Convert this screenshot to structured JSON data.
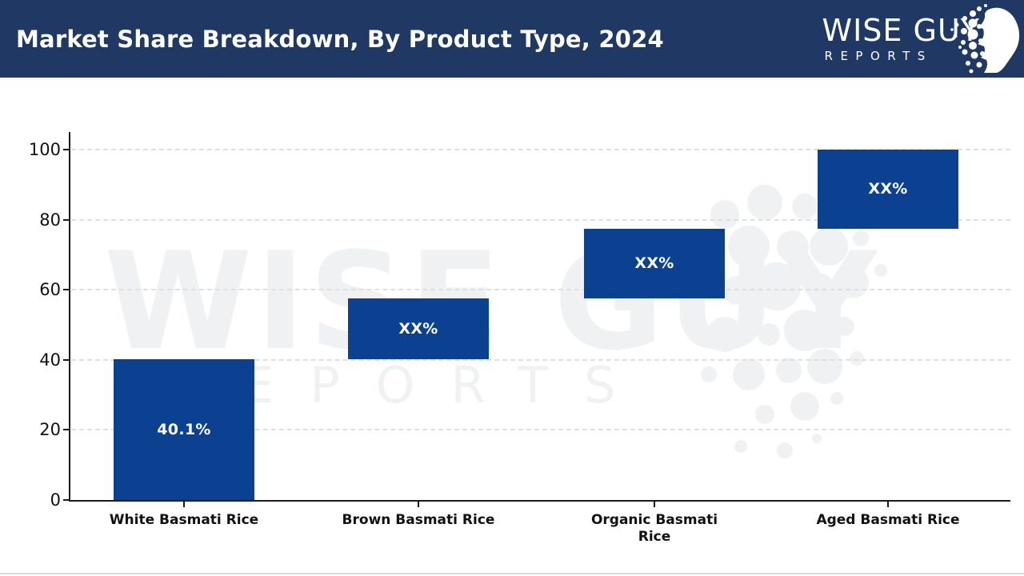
{
  "header": {
    "title": "Market Share Breakdown, By Product Type, 2024",
    "logo": {
      "line1": "WISE GUY",
      "line2": "REPORTS"
    }
  },
  "watermark": {
    "line1": "WISE GUY",
    "line2": "REPORTS"
  },
  "colors": {
    "header_bg": "#1f3864",
    "bar": "#0c4191",
    "grid": "#dfdfdf",
    "axis": "#1a1a1a",
    "watermark": "#f0f1f3",
    "text": "#111111",
    "bar_label": "#ffffff",
    "bottom_line": "#d9d9d9"
  },
  "chart_data": {
    "type": "bar",
    "subtype": "waterfall",
    "title": "Market Share Breakdown, By Product Type, 2024",
    "categories": [
      "White Basmati Rice",
      "Brown Basmati Rice",
      "Organic Basmati\nRice",
      "Aged Basmati Rice"
    ],
    "segments": [
      {
        "category": "White Basmati Rice",
        "start": 0,
        "end": 40.1,
        "label": "40.1%"
      },
      {
        "category": "Brown Basmati Rice",
        "start": 40.1,
        "end": 57.6,
        "label": "XX%"
      },
      {
        "category": "Organic Basmati Rice",
        "start": 57.6,
        "end": 77.5,
        "label": "XX%"
      },
      {
        "category": "Aged Basmati Rice",
        "start": 77.5,
        "end": 100,
        "label": "XX%"
      }
    ],
    "yticks": [
      0,
      20,
      40,
      60,
      80,
      100
    ],
    "ylim": [
      0,
      100
    ],
    "xlabel": "",
    "ylabel": "",
    "grid": "horizontal-dashed",
    "legend": "none",
    "bar_color": "#0c4191",
    "bar_label_color": "#ffffff"
  }
}
